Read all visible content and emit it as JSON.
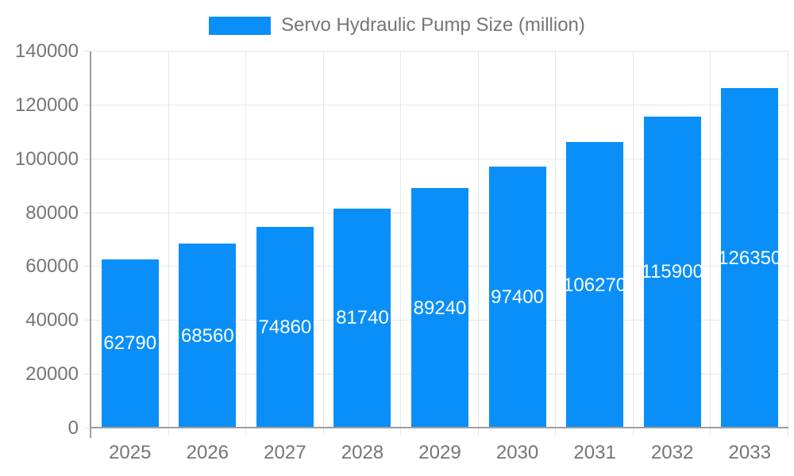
{
  "chart_data": {
    "type": "bar",
    "title": "Servo Hydraulic Pump Size (million)",
    "legend": [
      "Servo Hydraulic Pump Size (million)"
    ],
    "legend_position": "top-center",
    "categories": [
      "2025",
      "2026",
      "2027",
      "2028",
      "2029",
      "2030",
      "2031",
      "2032",
      "2033"
    ],
    "values": [
      62790,
      68560,
      74860,
      81740,
      89240,
      97400,
      106270,
      115900,
      126350
    ],
    "value_labels": [
      "62790",
      "68560",
      "74860",
      "81740",
      "89240",
      "97400",
      "106270",
      "115900",
      "126350"
    ],
    "xlabel": "",
    "ylabel": "",
    "ylim": [
      0,
      140000
    ],
    "y_ticks": [
      0,
      20000,
      40000,
      60000,
      80000,
      100000,
      120000,
      140000
    ],
    "y_tick_labels": [
      "0",
      "20000",
      "40000",
      "60000",
      "80000",
      "100000",
      "120000",
      "140000"
    ],
    "grid": true,
    "colors": {
      "bar": "#0a8ff9",
      "grid": "#e6e6e6",
      "axis": "#9e9e9e",
      "text": "#757575",
      "value_label": "#ffffff",
      "background": "#ffffff"
    }
  }
}
